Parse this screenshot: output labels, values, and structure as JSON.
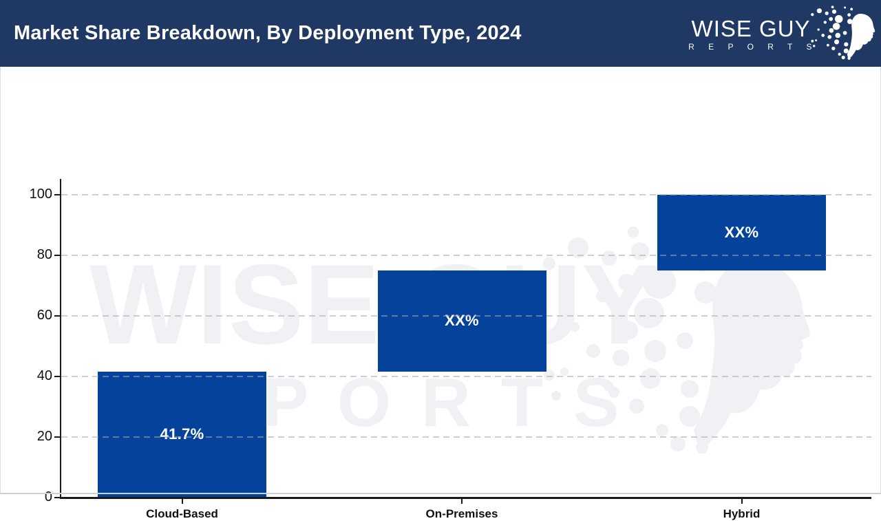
{
  "header": {
    "title": "Market Share Breakdown, By Deployment Type, 2024",
    "logo": {
      "wordmark": "WISE GUY",
      "subtext": "R E P O R T S",
      "icon": "dotted-face-profile"
    }
  },
  "watermark": {
    "wordmark_top": "WISE GUY",
    "wordmark_bottom": "R E P O R T S",
    "icon": "dotted-face-profile"
  },
  "chart_data": {
    "type": "bar",
    "variant": "waterfall",
    "title": "Market Share Breakdown, By Deployment Type, 2024",
    "categories": [
      "Cloud-Based",
      "On-Premises",
      "Hybrid"
    ],
    "bars": [
      {
        "category": "Cloud-Based",
        "start": 0,
        "end": 41.7,
        "label": "41.7%"
      },
      {
        "category": "On-Premises",
        "start": 41.7,
        "end": 75,
        "label": "XX%"
      },
      {
        "category": "Hybrid",
        "start": 75,
        "end": 100,
        "label": "XX%"
      }
    ],
    "xlabel": "",
    "ylabel": "",
    "yticks": [
      0,
      20,
      40,
      60,
      80,
      100
    ],
    "ylim": [
      0,
      105
    ],
    "grid": "horizontal-dashed",
    "legend": "none",
    "bar_color": "#04429c",
    "bar_label_color": "#ffffff"
  },
  "colors": {
    "header_bg": "#1f3864",
    "header_text": "#ffffff",
    "bar": "#04429c",
    "grid": "#d9d9d9",
    "axis": "#1a1a1a",
    "watermark": "#f0f1f4"
  }
}
